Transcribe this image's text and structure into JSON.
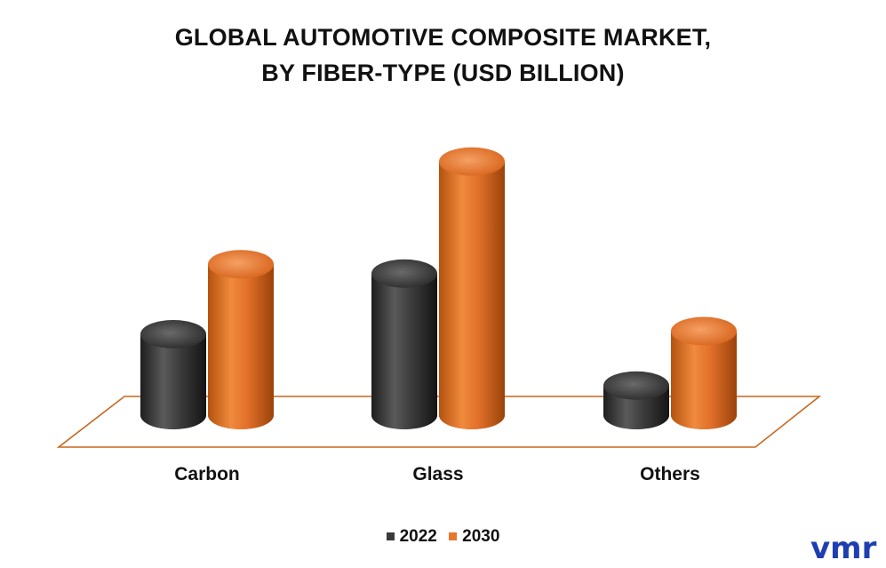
{
  "colors": {
    "2022": "#3a3a3a",
    "2030": "#e8772c",
    "platform": "#c9671f",
    "logo": "#1f3fb0"
  },
  "chart_data": {
    "type": "bar",
    "title": "GLOBAL AUTOMOTIVE COMPOSITE MARKET, BY FIBER-TYPE (USD BILLION)",
    "title_lines": [
      "GLOBAL AUTOMOTIVE COMPOSITE MARKET,",
      "BY FIBER-TYPE (USD BILLION)"
    ],
    "categories": [
      "Carbon",
      "Glass",
      "Others"
    ],
    "series": [
      {
        "name": "2022",
        "values": [
          5.2,
          9.1,
          1.9
        ]
      },
      {
        "name": "2030",
        "values": [
          9.7,
          16.3,
          5.4
        ]
      }
    ],
    "ylim": [
      0,
      17
    ],
    "grid": false,
    "legend_position": "bottom-center",
    "xlabel": "",
    "ylabel": ""
  },
  "logo_text": "vmr"
}
